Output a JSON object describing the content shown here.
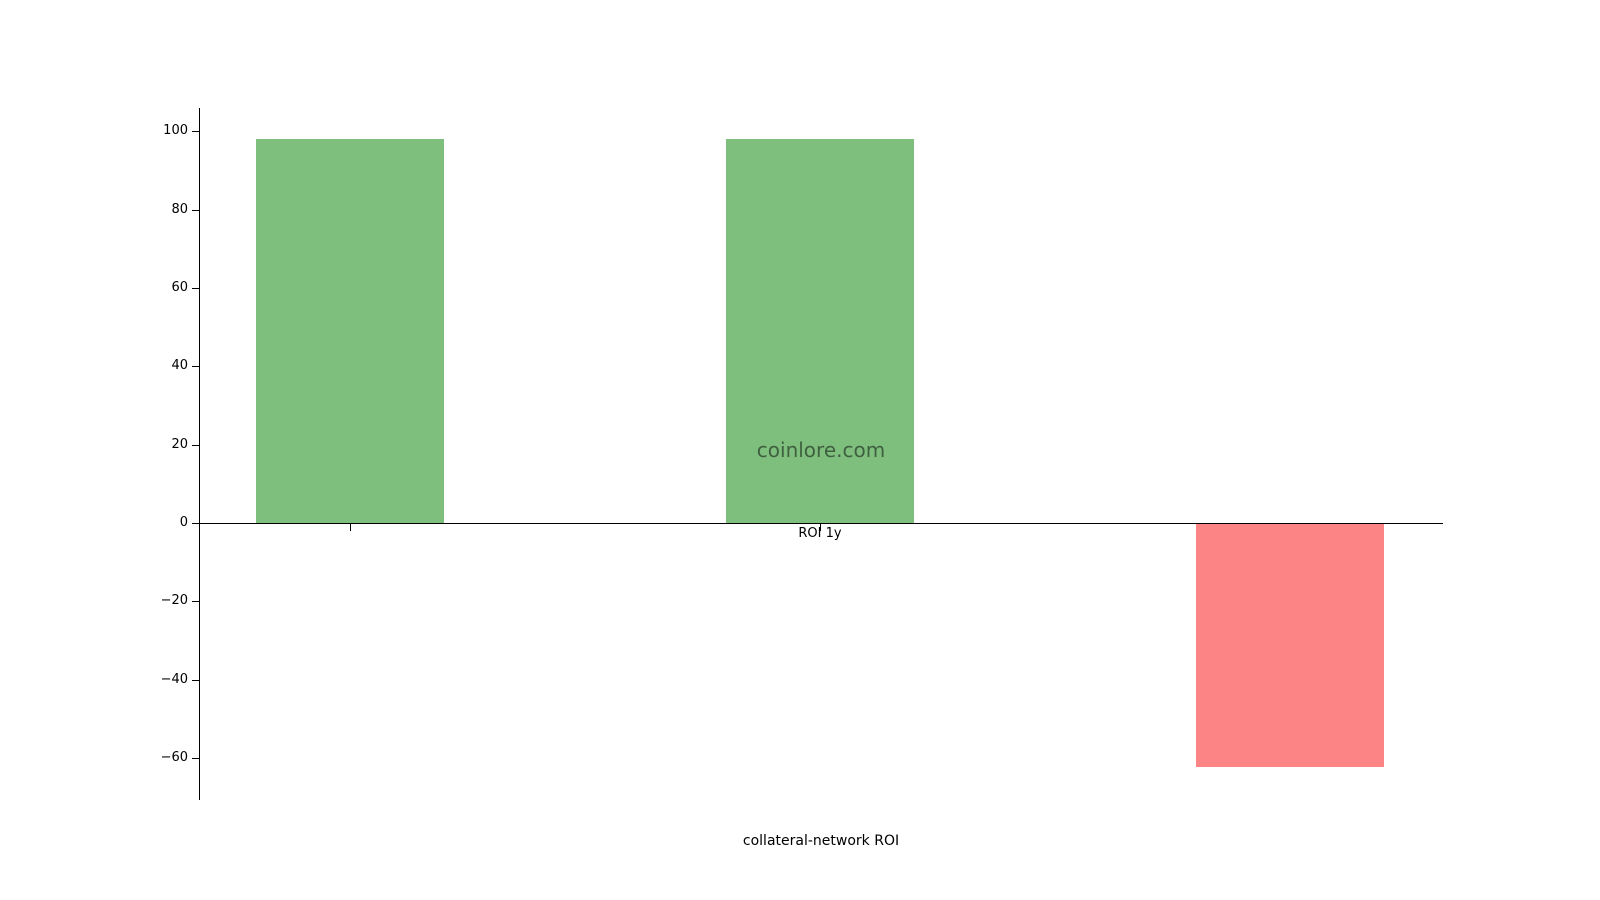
{
  "page": {
    "background": "#ffffff"
  },
  "chart_data": {
    "type": "bar",
    "title": "",
    "xlabel": "collateral-network ROI",
    "ylabel": "",
    "watermark": "coinlore.com",
    "categories": [
      "",
      "ROI 1y",
      ""
    ],
    "values": [
      98,
      98,
      -62
    ],
    "y_ticks": [
      100,
      80,
      60,
      40,
      20,
      0,
      -20,
      -40,
      -60
    ],
    "ylim": [
      -71,
      106
    ],
    "x_ticks_visible": [
      0,
      1
    ],
    "grid": false,
    "colors": {
      "positive_bar": "#7ebf7e",
      "negative_bar": "#fc8484",
      "axis": "#000000",
      "tick_label": "#000000",
      "watermark": "rgba(0,0,0,0.5)"
    }
  }
}
